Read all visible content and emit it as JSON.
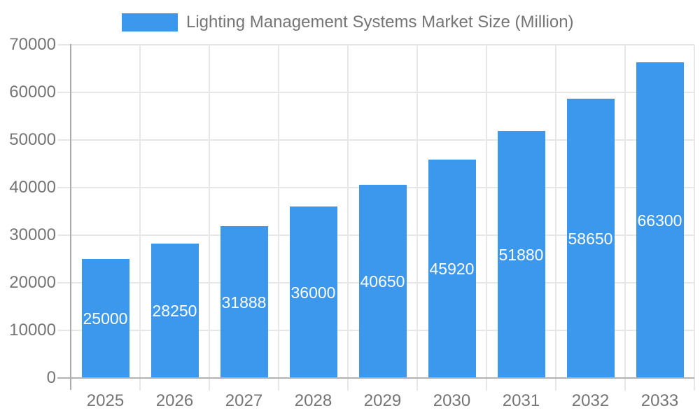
{
  "chart_data": {
    "type": "bar",
    "title": "Lighting Management Systems Market Size (Million)",
    "categories": [
      "2025",
      "2026",
      "2027",
      "2028",
      "2029",
      "2030",
      "2031",
      "2032",
      "2033"
    ],
    "values": [
      25000,
      28250,
      31888,
      36000,
      40650,
      45920,
      51880,
      58650,
      66300
    ],
    "bar_value_labels": [
      "25000",
      "28250",
      "31888",
      "36000",
      "40650",
      "45920",
      "51880",
      "58650",
      "66300"
    ],
    "xlabel": "",
    "ylabel": "",
    "ylim": [
      0,
      70000
    ],
    "ytick_step": 10000,
    "yticks": [
      "0",
      "10000",
      "20000",
      "30000",
      "40000",
      "50000",
      "60000",
      "70000"
    ],
    "grid": true,
    "legend_position": "top"
  },
  "legend": {
    "label": "Lighting Management Systems Market Size (Million)"
  },
  "colors": {
    "bar": "#3b98ec",
    "bar_label": "#ffffff",
    "axis_text": "#757575",
    "gridline": "#e7e7e7",
    "axis_line": "#ababab",
    "baseline": "#b3b3b3",
    "background": "#ffffff"
  }
}
